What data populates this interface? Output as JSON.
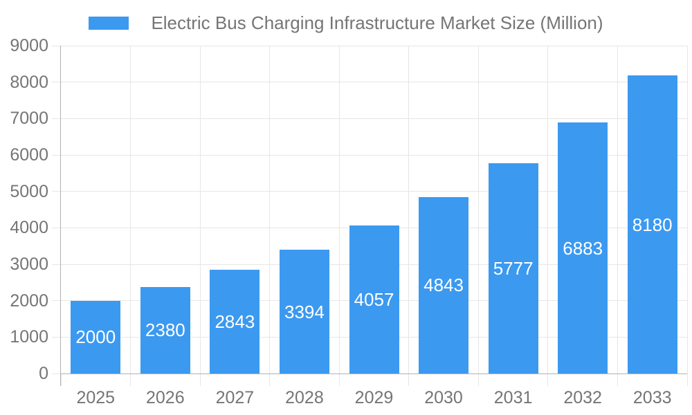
{
  "legend": {
    "label": "Electric Bus Charging Infrastructure Market Size (Million)"
  },
  "chart_data": {
    "type": "bar",
    "title": "Electric Bus Charging Infrastructure Market Size (Million)",
    "series_name": "Electric Bus Charging Infrastructure Market Size (Million)",
    "categories": [
      "2025",
      "2026",
      "2027",
      "2028",
      "2029",
      "2030",
      "2031",
      "2032",
      "2033"
    ],
    "values": [
      2000,
      2380,
      2843,
      3394,
      4057,
      4843,
      5777,
      6883,
      8180
    ],
    "value_labels": [
      "2000",
      "2380",
      "2843",
      "3394",
      "4057",
      "4843",
      "5777",
      "6883",
      "8180"
    ],
    "y_tick_labels": [
      "0",
      "1000",
      "2000",
      "3000",
      "4000",
      "5000",
      "6000",
      "7000",
      "8000",
      "9000"
    ],
    "xlabel": "",
    "ylabel": "",
    "ylim": [
      0,
      9000
    ],
    "ytick_step": 1000,
    "grid": true,
    "legend_position": "top",
    "bar_color": "#3B99F0",
    "value_label_color": "#FFFFFF",
    "axis_text_color": "#757575",
    "gridline_color": "#E6E6E6",
    "axis_line_color": "#B0B0B0",
    "background": "#FFFFFF"
  }
}
